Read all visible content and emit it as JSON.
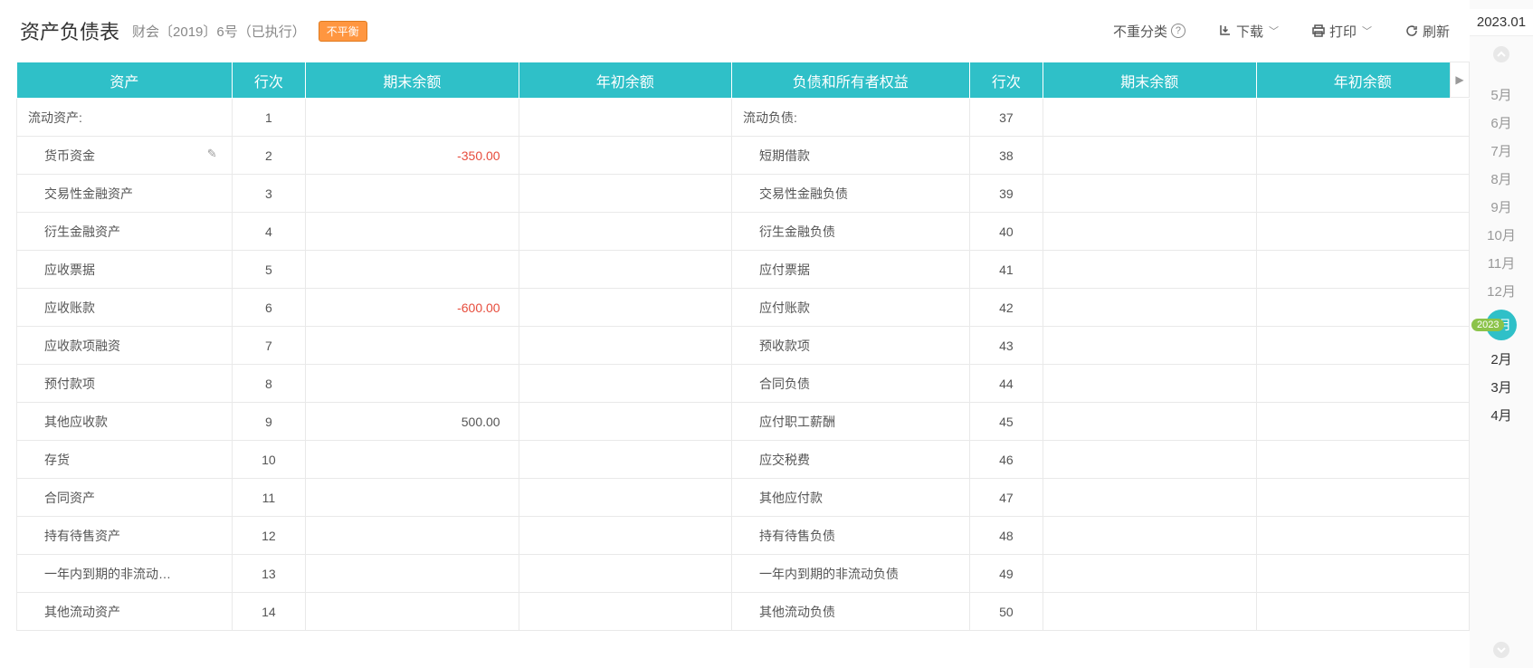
{
  "header": {
    "title": "资产负债表",
    "subtitle": "财会〔2019〕6号（已执行）",
    "badge": "不平衡",
    "actions": {
      "reclassify": "不重分类",
      "download": "下载",
      "print": "打印",
      "refresh": "刷新"
    }
  },
  "columns": {
    "asset": "资产",
    "row_l": "行次",
    "end_l": "期末余额",
    "begin_l": "年初余额",
    "liab": "负债和所有者权益",
    "row_r": "行次",
    "end_r": "期末余额",
    "begin_r": "年初余额"
  },
  "rows": [
    {
      "a": "流动资产:",
      "an": 1,
      "ae": "",
      "ab": "",
      "b": "流动负债:",
      "bn": 37,
      "be": "",
      "bb": "",
      "ia": 0,
      "ib": 0
    },
    {
      "a": "货币资金",
      "an": 2,
      "ae": "-350.00",
      "ab": "",
      "b": "短期借款",
      "bn": 38,
      "be": "",
      "bb": "",
      "ia": 1,
      "ib": 1,
      "neg": true,
      "edit": true
    },
    {
      "a": "交易性金融资产",
      "an": 3,
      "ae": "",
      "ab": "",
      "b": "交易性金融负债",
      "bn": 39,
      "be": "",
      "bb": "",
      "ia": 1,
      "ib": 1
    },
    {
      "a": "衍生金融资产",
      "an": 4,
      "ae": "",
      "ab": "",
      "b": "衍生金融负债",
      "bn": 40,
      "be": "",
      "bb": "",
      "ia": 1,
      "ib": 1
    },
    {
      "a": "应收票据",
      "an": 5,
      "ae": "",
      "ab": "",
      "b": "应付票据",
      "bn": 41,
      "be": "",
      "bb": "",
      "ia": 1,
      "ib": 1
    },
    {
      "a": "应收账款",
      "an": 6,
      "ae": "-600.00",
      "ab": "",
      "b": "应付账款",
      "bn": 42,
      "be": "",
      "bb": "",
      "ia": 1,
      "ib": 1,
      "neg": true
    },
    {
      "a": "应收款项融资",
      "an": 7,
      "ae": "",
      "ab": "",
      "b": "预收款项",
      "bn": 43,
      "be": "",
      "bb": "",
      "ia": 1,
      "ib": 1
    },
    {
      "a": "预付款项",
      "an": 8,
      "ae": "",
      "ab": "",
      "b": "合同负债",
      "bn": 44,
      "be": "",
      "bb": "",
      "ia": 1,
      "ib": 1
    },
    {
      "a": "其他应收款",
      "an": 9,
      "ae": "500.00",
      "ab": "",
      "b": "应付职工薪酬",
      "bn": 45,
      "be": "",
      "bb": "",
      "ia": 1,
      "ib": 1
    },
    {
      "a": "存货",
      "an": 10,
      "ae": "",
      "ab": "",
      "b": "应交税费",
      "bn": 46,
      "be": "",
      "bb": "",
      "ia": 1,
      "ib": 1
    },
    {
      "a": "合同资产",
      "an": 11,
      "ae": "",
      "ab": "",
      "b": "其他应付款",
      "bn": 47,
      "be": "",
      "bb": "",
      "ia": 1,
      "ib": 1
    },
    {
      "a": "持有待售资产",
      "an": 12,
      "ae": "",
      "ab": "",
      "b": "持有待售负债",
      "bn": 48,
      "be": "",
      "bb": "",
      "ia": 1,
      "ib": 1
    },
    {
      "a": "一年内到期的非流动…",
      "an": 13,
      "ae": "",
      "ab": "",
      "b": "一年内到期的非流动负债",
      "bn": 49,
      "be": "",
      "bb": "",
      "ia": 1,
      "ib": 1
    },
    {
      "a": "其他流动资产",
      "an": 14,
      "ae": "",
      "ab": "",
      "b": "其他流动负债",
      "bn": 50,
      "be": "",
      "bb": "",
      "ia": 1,
      "ib": 1
    }
  ],
  "period": {
    "label": "2023.01",
    "year": "2023",
    "months_gray": [
      "5月",
      "6月",
      "7月",
      "8月",
      "9月",
      "10月",
      "11月",
      "12月"
    ],
    "active": "1月",
    "months_dark": [
      "2月",
      "3月",
      "4月"
    ]
  }
}
